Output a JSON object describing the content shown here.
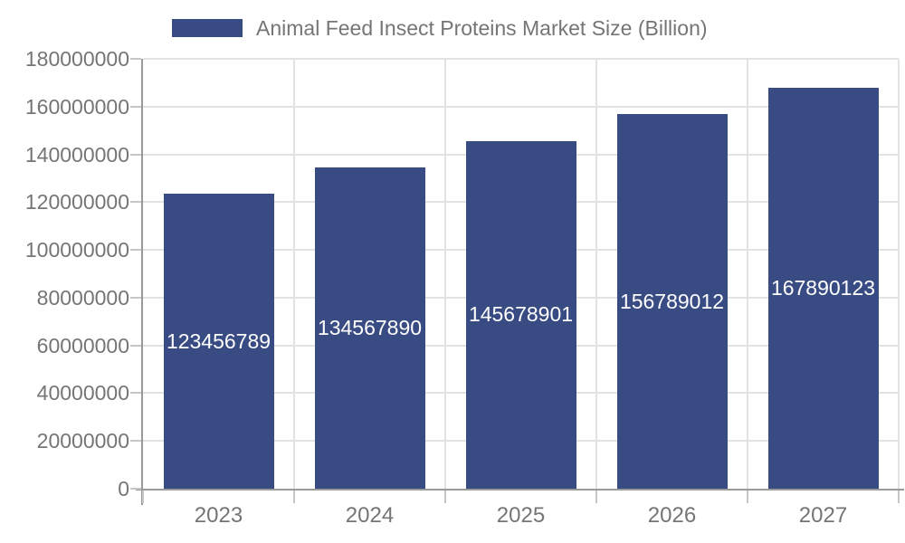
{
  "chart_data": {
    "type": "bar",
    "title": "Animal Feed Insect Proteins Market Size (Billion)",
    "categories": [
      "2023",
      "2024",
      "2025",
      "2026",
      "2027"
    ],
    "values": [
      123456789,
      134567890,
      145678901,
      156789012,
      167890123
    ],
    "bar_value_labels": [
      "123456789",
      "134567890",
      "145678901",
      "156789012",
      "167890123"
    ],
    "ylabel": "",
    "xlabel": "",
    "ylim": [
      0,
      180000000
    ],
    "ytick_step": 20000000,
    "ytick_labels": [
      "0",
      "20000000",
      "40000000",
      "60000000",
      "80000000",
      "100000000",
      "120000000",
      "140000000",
      "160000000",
      "180000000"
    ],
    "grid": true,
    "legend_position": "top",
    "colors": {
      "bar": "#394b83",
      "bar_value_text": "#ffffff",
      "axis_text": "#757575",
      "legend_text": "#757575",
      "axis_line": "#9a9a9a",
      "grid_line": "#e3e3e3",
      "tick_mark": "#c6c6c6",
      "background": "#ffffff"
    }
  }
}
